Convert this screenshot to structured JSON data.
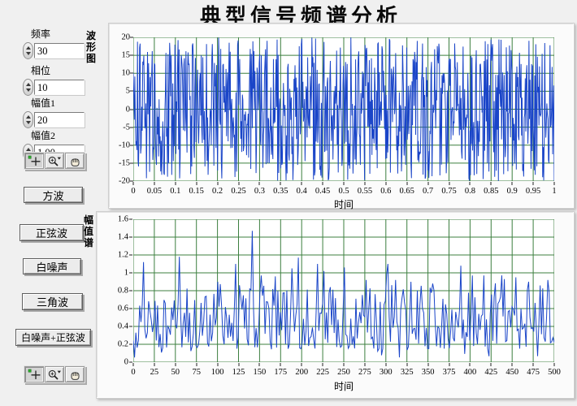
{
  "title": "典型信号频谱分析",
  "colors": {
    "signal_blue": "#1a45c8",
    "grid_green": "#3c7f3f",
    "plot_background": "#ffffff",
    "panel_background": "#fbfbfb"
  },
  "controls": [
    {
      "label": "频率",
      "value": "30"
    },
    {
      "label": "相位",
      "value": "10"
    },
    {
      "label": "幅值1",
      "value": "20"
    },
    {
      "label": "幅值2",
      "value": "1.00"
    }
  ],
  "signal_buttons": [
    {
      "label": "方波"
    },
    {
      "label": "正弦波"
    },
    {
      "label": "白噪声"
    },
    {
      "label": "三角波"
    },
    {
      "label": "白噪声+正弦波"
    }
  ],
  "palette_tools": [
    "cursor-crosshair",
    "zoom-magnifier",
    "pan-hand"
  ],
  "chart_data": [
    {
      "id": "waveform",
      "type": "line",
      "title": "波形图",
      "xlabel": "时间",
      "ylabel": "",
      "xlim": [
        0,
        1
      ],
      "ylim": [
        -20,
        20
      ],
      "x_tick_labels": [
        "0",
        "0.05",
        "0.1",
        "0.15",
        "0.2",
        "0.25",
        "0.3",
        "0.35",
        "0.4",
        "0.45",
        "0.5",
        "0.55",
        "0.6",
        "0.65",
        "0.7",
        "0.75",
        "0.8",
        "0.85",
        "0.9",
        "0.95",
        "1"
      ],
      "y_tick_labels": [
        "20",
        "15",
        "10",
        "5",
        "0",
        "-5",
        "-10",
        "-15",
        "-20"
      ],
      "grid": true,
      "legend": false,
      "signal_description": "dense white-noise-like signal (noise + 30 Hz sine, amplitude 20) filling nearly the whole -20..20 range",
      "n_points": 800,
      "amplitude": 20,
      "seed": 20
    },
    {
      "id": "spectrum",
      "type": "line",
      "title": "幅值谱",
      "xlabel": "时间",
      "ylabel": "",
      "xlim": [
        0,
        500
      ],
      "ylim": [
        0,
        1.6
      ],
      "x_tick_labels": [
        "0",
        "25",
        "50",
        "75",
        "100",
        "125",
        "150",
        "175",
        "200",
        "225",
        "250",
        "275",
        "300",
        "325",
        "350",
        "375",
        "400",
        "425",
        "450",
        "475",
        "500"
      ],
      "y_tick_labels": [
        "1.6",
        "1.4",
        "1.2",
        "1",
        "0.8",
        "0.6",
        "0.4",
        "0.2",
        "0"
      ],
      "grid": true,
      "legend": false,
      "signal_description": "noisy amplitude spectrum, floor mostly 0.2-0.9 with distinct peaks",
      "n_points": 330,
      "noise_floor": [
        0.15,
        0.75
      ],
      "peaks": [
        [
          12,
          1.12
        ],
        [
          54,
          1.18
        ],
        [
          100,
          0.9
        ],
        [
          122,
          1.1
        ],
        [
          141,
          1.47
        ],
        [
          152,
          0.97
        ],
        [
          168,
          0.96
        ],
        [
          188,
          1.05
        ],
        [
          196,
          1.17
        ],
        [
          219,
          1.1
        ],
        [
          226,
          1.02
        ],
        [
          251,
          1.06
        ],
        [
          277,
          0.92
        ],
        [
          302,
          1.1
        ],
        [
          312,
          0.92
        ],
        [
          330,
          0.9
        ],
        [
          355,
          0.88
        ],
        [
          389,
          1.08
        ],
        [
          403,
          0.97
        ],
        [
          416,
          0.97
        ],
        [
          441,
          0.93
        ],
        [
          454,
          0.95
        ],
        [
          470,
          0.9
        ],
        [
          493,
          0.92
        ]
      ],
      "seed": 99
    }
  ]
}
